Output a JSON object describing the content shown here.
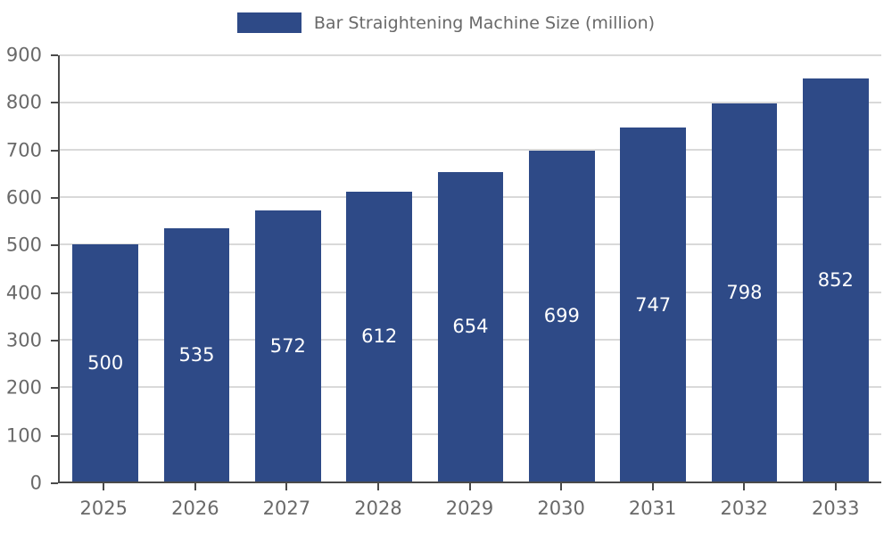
{
  "chart_data": {
    "type": "bar",
    "title": "Bar Straightening Machine Size (million)",
    "categories": [
      "2025",
      "2026",
      "2027",
      "2028",
      "2029",
      "2030",
      "2031",
      "2032",
      "2033"
    ],
    "values": [
      500,
      535,
      572,
      612,
      654,
      699,
      747,
      798,
      852
    ],
    "ylim": [
      0,
      900
    ],
    "ytick_step": 100,
    "grid": "horizontal",
    "legend_position": "top-center",
    "bar_color": "#2e4a87",
    "grid_color": "#d9d9d9",
    "axis_color": "#4a4a4a",
    "axis_text_color": "#696969",
    "value_label_color": "#ffffff"
  }
}
